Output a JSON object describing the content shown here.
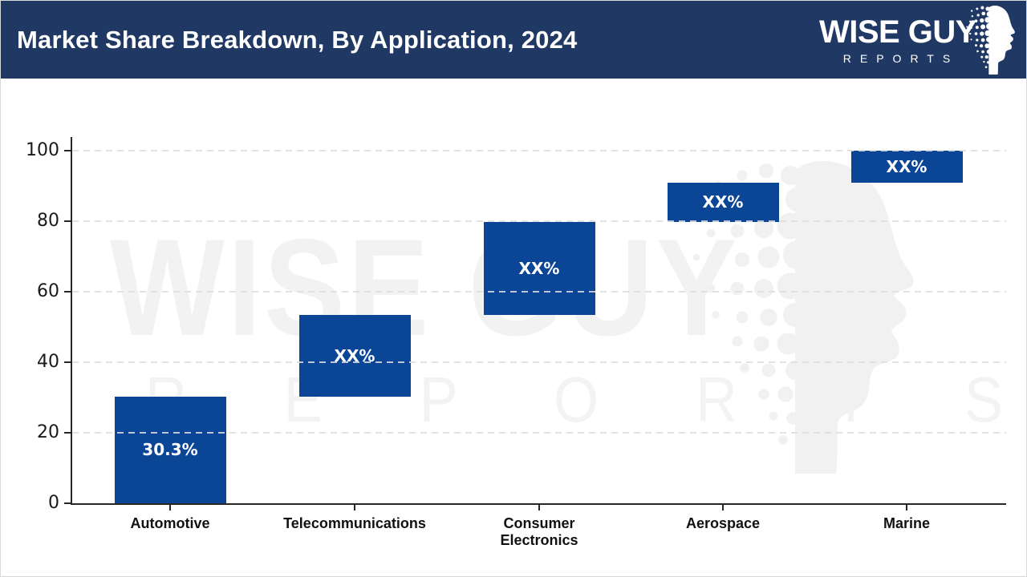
{
  "header": {
    "title": "Market Share Breakdown, By Application, 2024",
    "bg_color": "#203864",
    "logo": {
      "line1": "WISE GUY",
      "line2": "REPORTS"
    }
  },
  "watermark": {
    "line1": "WISE GUY",
    "line2": "R E P O R T S"
  },
  "chart_data": {
    "type": "bar",
    "subtype": "waterfall",
    "title": "Market Share Breakdown, By Application, 2024",
    "categories": [
      "Automotive",
      "Telecommunications",
      "Consumer Electronics",
      "Aerospace",
      "Marine"
    ],
    "segments": [
      {
        "category_lines": [
          "Automotive"
        ],
        "start": 0,
        "end": 30.3,
        "label": "30.3%"
      },
      {
        "category_lines": [
          "Telecommunications"
        ],
        "start": 30.3,
        "end": 53.5,
        "label": "XX%"
      },
      {
        "category_lines": [
          "Consumer",
          "Electronics"
        ],
        "start": 53.5,
        "end": 79.8,
        "label": "XX%"
      },
      {
        "category_lines": [
          "Aerospace"
        ],
        "start": 79.8,
        "end": 90.9,
        "label": "XX%"
      },
      {
        "category_lines": [
          "Marine"
        ],
        "start": 90.9,
        "end": 100,
        "label": "XX%"
      }
    ],
    "xlabel": "",
    "ylabel": "",
    "ylim": [
      0,
      100
    ],
    "yticks": [
      0,
      20,
      40,
      60,
      80,
      100
    ],
    "grid": "horizontal-dashed",
    "legend": "none",
    "bar_color": "#0b4596",
    "bar_label_color": "#ffffff",
    "axis_color": "#262626"
  }
}
